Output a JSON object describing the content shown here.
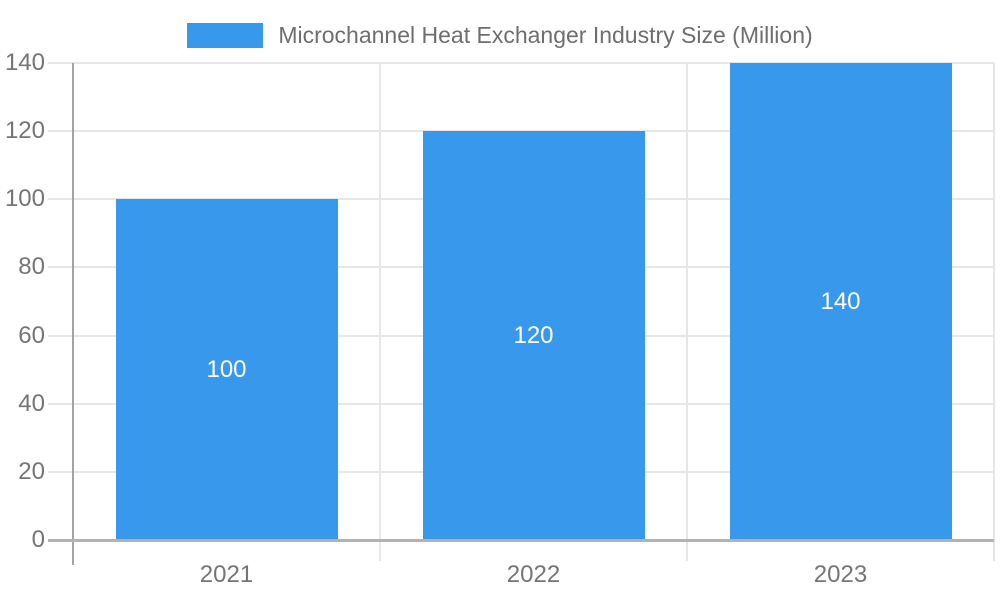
{
  "legend": {
    "position": "top"
  },
  "chart_data": {
    "type": "bar",
    "categories": [
      "2021",
      "2022",
      "2023"
    ],
    "series": [
      {
        "name": "Microchannel Heat Exchanger Industry Size (Million)",
        "values": [
          100,
          120,
          140
        ]
      }
    ],
    "bar_value_labels": [
      "100",
      "120",
      "140"
    ],
    "title": "Microchannel Heat Exchanger Industry Size (Million)",
    "xlabel": "",
    "ylabel": "",
    "ylim": [
      0,
      140
    ],
    "yticks": [
      0,
      20,
      40,
      60,
      80,
      100,
      120,
      140
    ],
    "grid": true,
    "legend_position": "top",
    "colors": {
      "bar": "#3898EC",
      "gridline": "#e6e6e6",
      "baseline": "#b2b2b2",
      "axis_line": "#a3a3a3",
      "axis_text": "#757575",
      "legend_text": "#6e6e6e",
      "bar_label_text": "#ffffff",
      "background": "#ffffff"
    }
  }
}
